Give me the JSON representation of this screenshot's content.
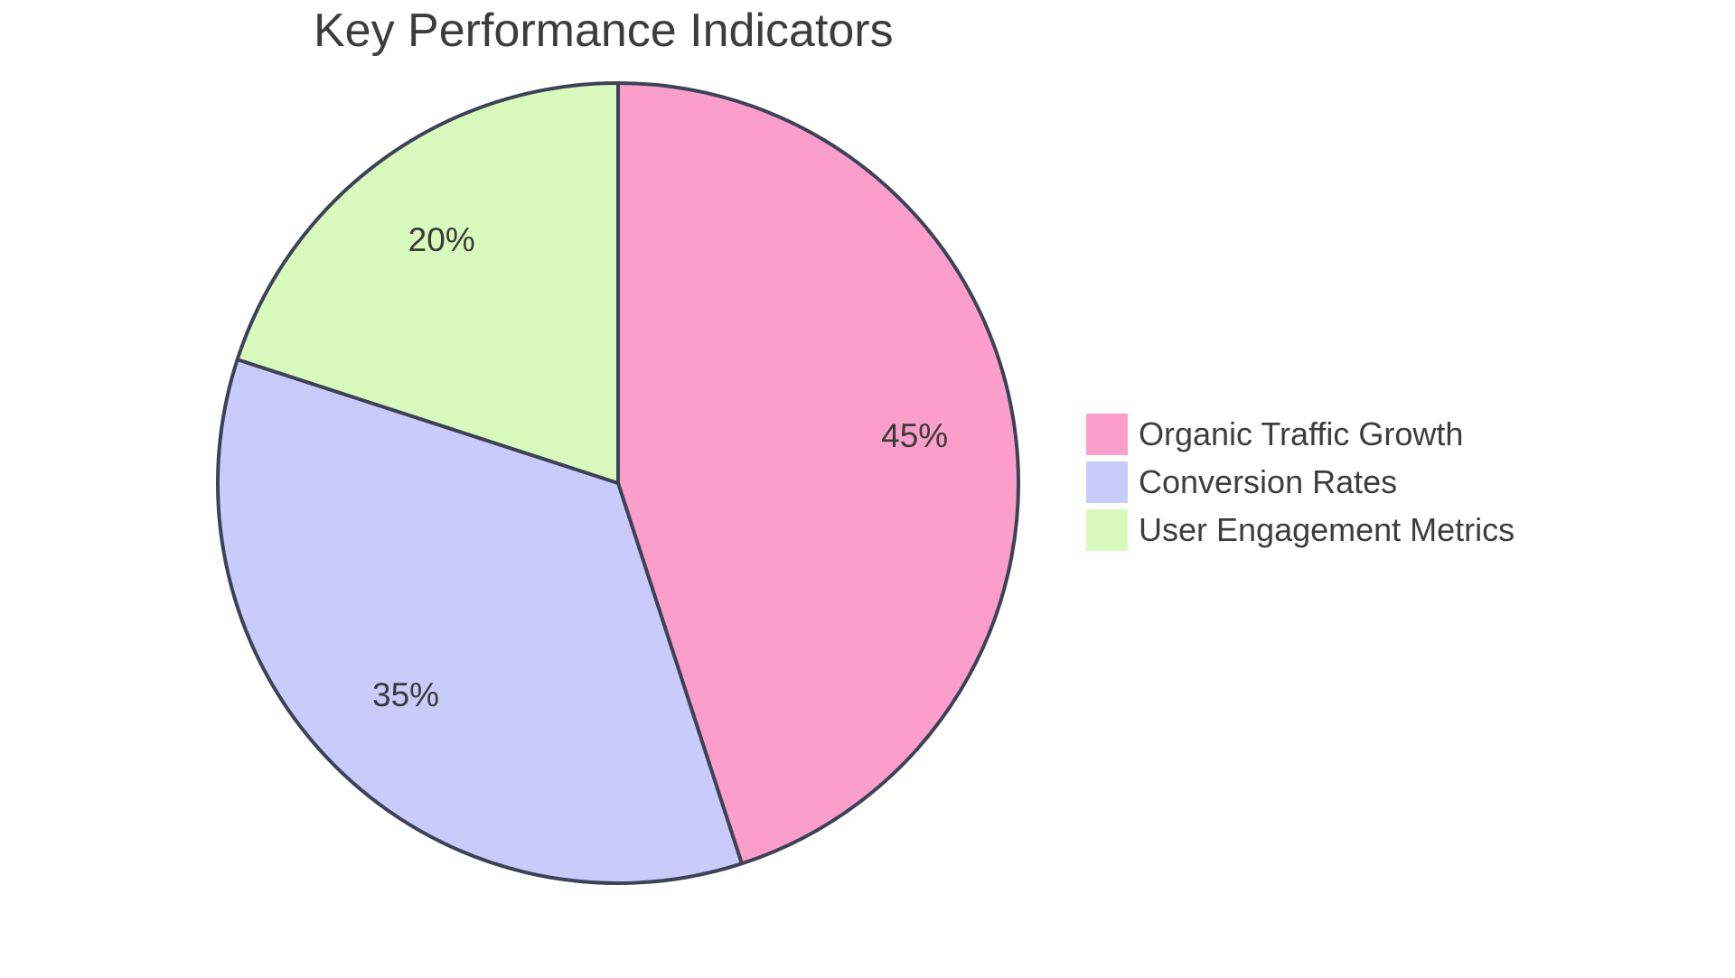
{
  "chart_data": {
    "type": "pie",
    "title": "Key Performance Indicators",
    "categories": [
      "Organic Traffic Growth",
      "Conversion Rates",
      "User Engagement Metrics"
    ],
    "values": [
      45,
      35,
      20
    ],
    "slice_labels": [
      "45%",
      "35%",
      "20%"
    ],
    "colors": [
      "#FB9FCA",
      "#C9CCFB",
      "#D8FABD"
    ],
    "border_color": "#3E4257",
    "border_width": 4,
    "start_angle_deg": 0,
    "direction": "clockwise",
    "legend_position": "right",
    "title_color": "#3C3C3C",
    "label_color": "#3A3A3A",
    "background_color": "#FFFFFF"
  },
  "legend": {
    "items": [
      {
        "label": "Organic Traffic Growth",
        "color": "#FB9FCA"
      },
      {
        "label": "Conversion Rates",
        "color": "#C9CCFB"
      },
      {
        "label": "User Engagement Metrics",
        "color": "#D8FABD"
      }
    ]
  }
}
